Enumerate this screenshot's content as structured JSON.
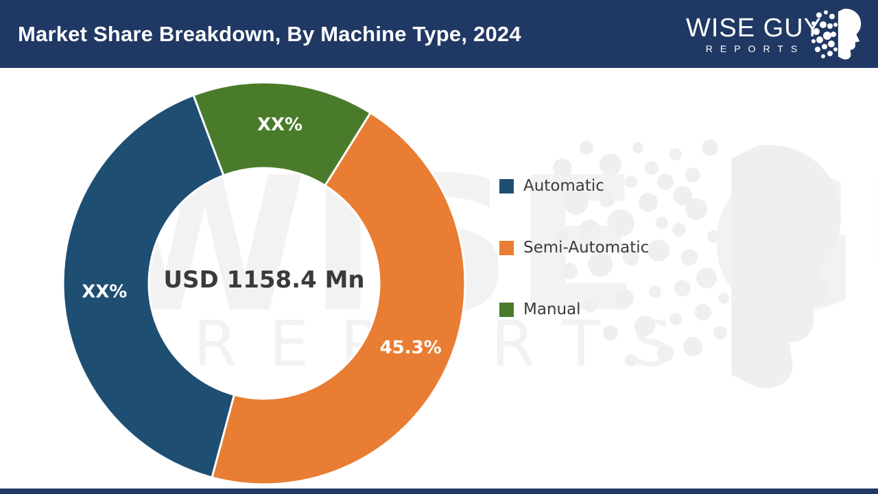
{
  "header": {
    "title": "Market Share Breakdown, By Machine Type, 2024",
    "logo": {
      "line1": "WISE GUY",
      "line2": "REPORTS"
    }
  },
  "watermark": {
    "line1": "WISE GUY",
    "line2": "REPORTS"
  },
  "chart_data": {
    "type": "pie",
    "donut": true,
    "title": "Market Share Breakdown, By Machine Type, 2024",
    "center_label": "USD 1158.4 Mn",
    "start_angle_deg": -20.6,
    "segments": [
      {
        "name": "Manual",
        "label": "XX%",
        "value_pct": 14.6,
        "color": "#4A7B2B"
      },
      {
        "name": "Semi-Automatic",
        "label": "45.3%",
        "value_pct": 45.3,
        "color": "#E87D33"
      },
      {
        "name": "Automatic",
        "label": "XX%",
        "value_pct": 40.1,
        "color": "#1F4E73"
      }
    ],
    "legend": [
      {
        "name": "Automatic",
        "color": "#1F4E73"
      },
      {
        "name": "Semi-Automatic",
        "color": "#E87D33"
      },
      {
        "name": "Manual",
        "color": "#4A7B2B"
      }
    ],
    "legend_position": "right"
  },
  "colors": {
    "header_bg": "#203864",
    "footer_bg": "#203864",
    "text_dark": "#3A3A3A",
    "label_white": "#FFFFFF",
    "watermark": "#F2F2F2"
  }
}
